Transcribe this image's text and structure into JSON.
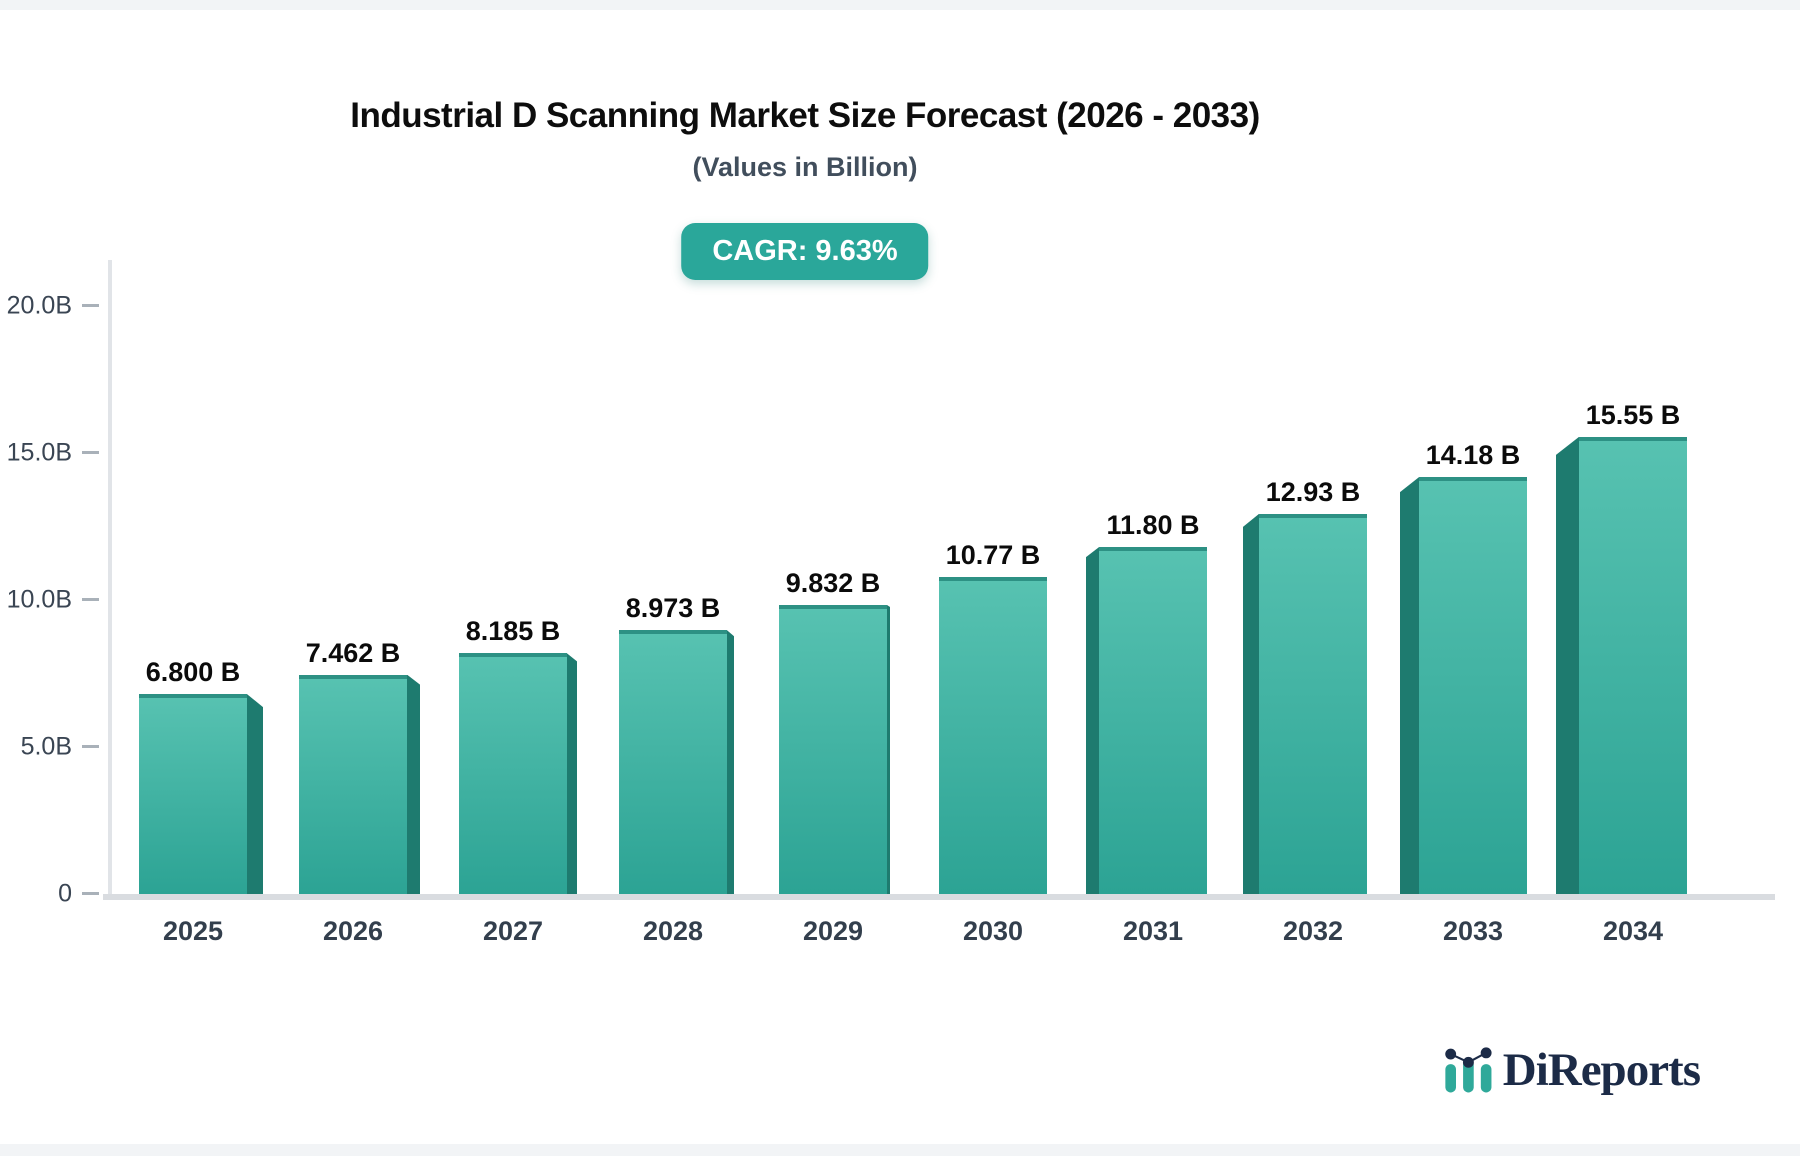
{
  "header": {
    "title": "Industrial D Scanning Market Size Forecast (2026 - 2033)",
    "subtitle": "(Values in Billion)",
    "cagr_label": "CAGR: 9.63%"
  },
  "chart_data": {
    "type": "bar",
    "title": "Industrial D Scanning Market Size Forecast (2026 - 2033)",
    "subtitle": "(Values in Billion)",
    "cagr_pct": 9.63,
    "categories": [
      "2025",
      "2026",
      "2027",
      "2028",
      "2029",
      "2030",
      "2031",
      "2032",
      "2033",
      "2034"
    ],
    "values": [
      6.8,
      7.462,
      8.185,
      8.973,
      9.832,
      10.77,
      11.8,
      12.93,
      14.18,
      15.55
    ],
    "bar_labels": [
      "6.800 B",
      "7.462 B",
      "8.185 B",
      "8.973 B",
      "9.832 B",
      "10.77 B",
      "11.80 B",
      "12.93 B",
      "14.18 B",
      "15.55 B"
    ],
    "xlabel": "",
    "ylabel": "",
    "ylim": [
      0,
      20
    ],
    "ytick_labels": [
      "20.0B",
      "15.0B",
      "10.0B",
      "5.0B",
      "0"
    ],
    "grid": false,
    "legend": false,
    "units": "Billion"
  },
  "colors": {
    "accent": "#2aa79a",
    "bar_top": "#57c2b1",
    "bar_bottom": "#2ca394",
    "bar_side": "#1e7b6f",
    "bar_cap": "#2d9184",
    "navy": "#1c2b47"
  },
  "branding": {
    "logo_text": "DiReports",
    "logo_icon": "mini-bar-chart-icon"
  }
}
